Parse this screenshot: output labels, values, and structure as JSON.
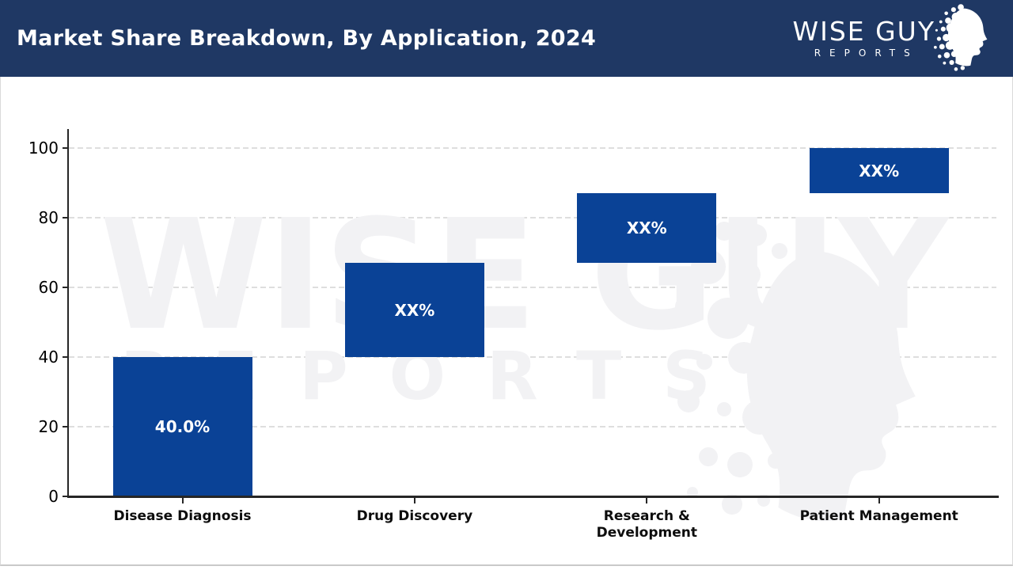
{
  "header": {
    "title": "Market Share Breakdown, By Application, 2024",
    "logo": {
      "brand": "WISE GUY",
      "sub": "REPORTS"
    }
  },
  "watermark": {
    "brand": "WISE GUY",
    "sub": "REPORTS"
  },
  "colors": {
    "header_bg": "#1f3864",
    "bar": "#0a4296",
    "grid": "#dedede",
    "watermark": "#f2f2f4",
    "axis": "#262626",
    "bar_label_text": "#ffffff"
  },
  "chart_data": {
    "type": "bar",
    "subtype": "waterfall-floating-bars",
    "title": "Market Share Breakdown, By Application, 2024",
    "xlabel": "",
    "ylabel": "",
    "categories": [
      "Disease Diagnosis",
      "Drug Discovery",
      "Research &\nDevelopment",
      "Patient Management"
    ],
    "segments": [
      {
        "category": "Disease Diagnosis",
        "from": 0,
        "to": 40,
        "value": 40,
        "label": "40.0%"
      },
      {
        "category": "Drug Discovery",
        "from": 40,
        "to": 67,
        "value": 27,
        "label": "XX%"
      },
      {
        "category": "Research & Development",
        "from": 67,
        "to": 87,
        "value": 20,
        "label": "XX%"
      },
      {
        "category": "Patient Management",
        "from": 87,
        "to": 100,
        "value": 13,
        "label": "XX%"
      }
    ],
    "yticks": [
      0,
      20,
      40,
      60,
      80,
      100
    ],
    "ylim": [
      0,
      106
    ],
    "grid": "dashed-horizontal",
    "legend": "none"
  }
}
